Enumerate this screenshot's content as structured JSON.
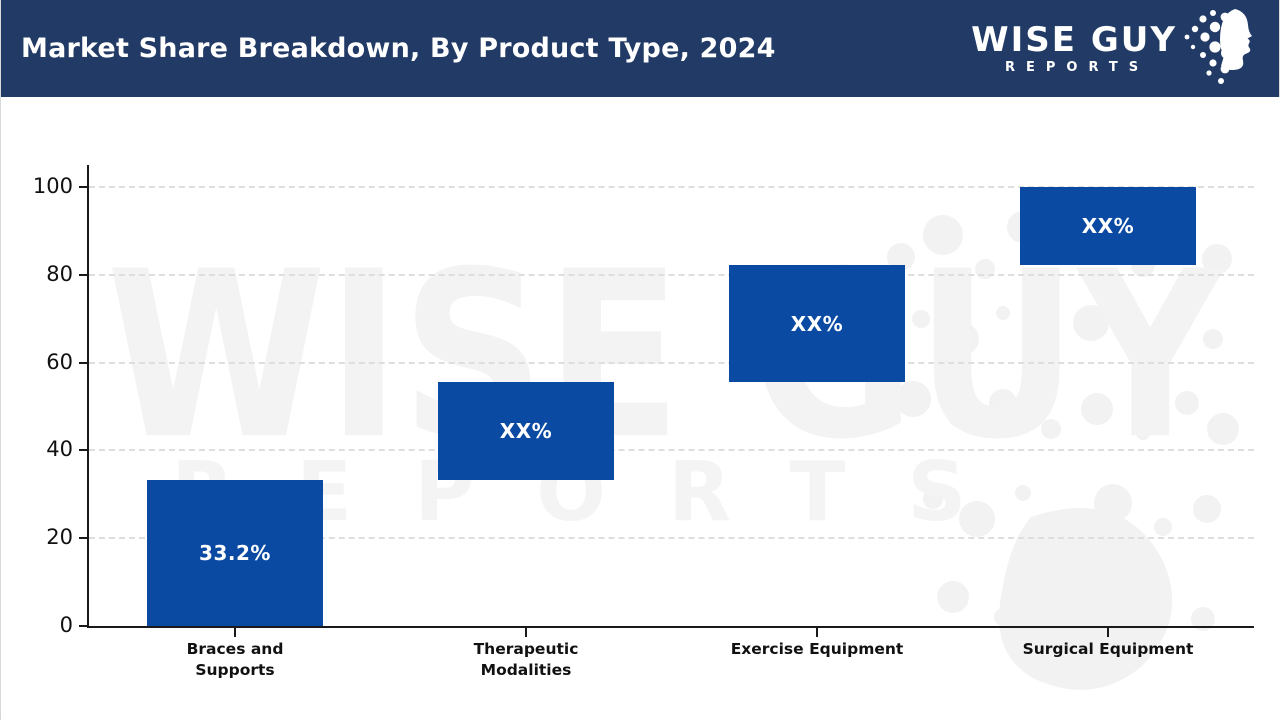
{
  "header": {
    "title": "Market Share Breakdown, By Product Type, 2024",
    "bg_color": "#213a66",
    "logo": {
      "line1": "WISE GUY",
      "line2": "REPORTS"
    }
  },
  "watermark": {
    "line1": "WISE GUY",
    "line2": "REPORTS"
  },
  "chart_data": {
    "type": "bar",
    "variant": "waterfall",
    "title": "Market Share Breakdown, By Product Type, 2024",
    "categories": [
      "Braces and Supports",
      "Therapeutic Modalities",
      "Exercise Equipment",
      "Surgical Equipment"
    ],
    "category_label_lines": [
      [
        "Braces and",
        "Supports"
      ],
      [
        "Therapeutic",
        "Modalities"
      ],
      [
        "Exercise Equipment"
      ],
      [
        "Surgical Equipment"
      ]
    ],
    "segments": [
      {
        "category": "Braces and Supports",
        "start": 0,
        "end": 33.2,
        "label": "33.2%"
      },
      {
        "category": "Therapeutic Modalities",
        "start": 33.2,
        "end": 55.5,
        "label": "XX%"
      },
      {
        "category": "Exercise Equipment",
        "start": 55.5,
        "end": 82.2,
        "label": "XX%"
      },
      {
        "category": "Surgical Equipment",
        "start": 82.2,
        "end": 100,
        "label": "XX%"
      }
    ],
    "bar_color": "#0b4aa2",
    "bar_label_color": "#ffffff",
    "xlabel": "",
    "ylabel": "",
    "ylim": [
      0,
      100
    ],
    "yticks": [
      0,
      20,
      40,
      60,
      80,
      100
    ],
    "grid": "horizontal-dashed",
    "legend": "none"
  }
}
